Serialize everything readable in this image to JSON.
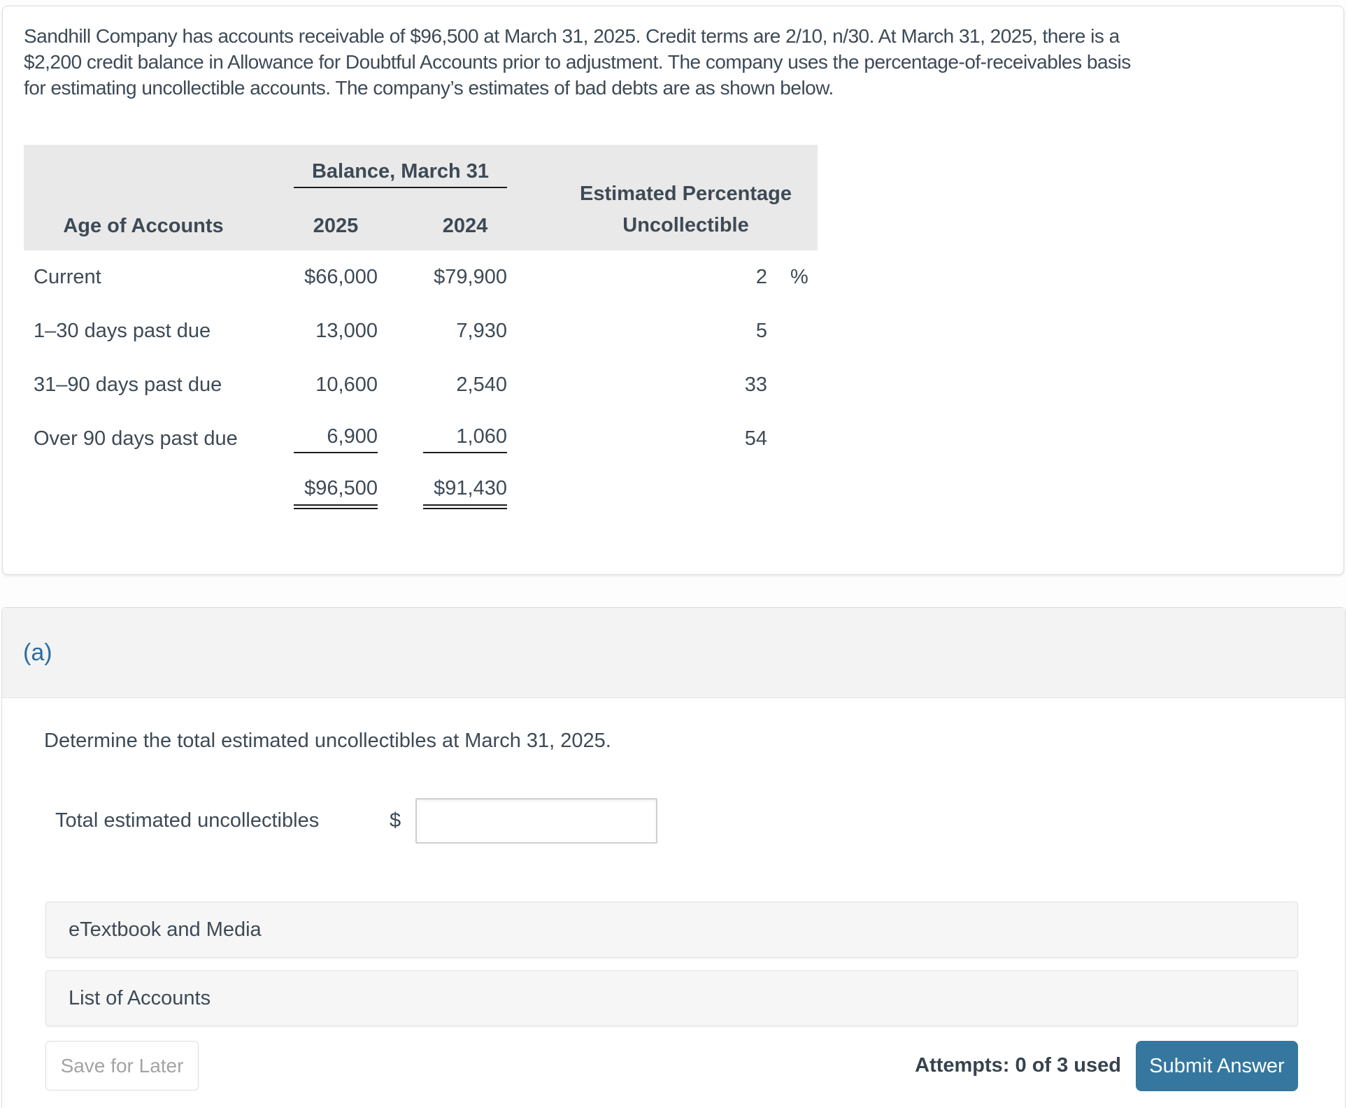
{
  "problem": {
    "intro_lines": [
      "Sandhill Company has accounts receivable of $96,500 at March 31, 2025. Credit terms are 2/10, n/30. At March 31, 2025, there is a",
      "$2,200 credit balance in Allowance for Doubtful Accounts prior to adjustment. The company uses the percentage-of-receivables basis",
      "for estimating uncollectible accounts. The company’s estimates of bad debts are as shown below."
    ],
    "table": {
      "header": {
        "balance_group": "Balance, March 31",
        "age_label": "Age of Accounts",
        "col_2025": "2025",
        "col_2024": "2024",
        "pct_line1": "Estimated Percentage",
        "pct_line2": "Uncollectible"
      },
      "rows": [
        {
          "age": "Current",
          "y2025": "$66,000",
          "y2024": "$79,900",
          "pct": "2",
          "pct_symbol": "%"
        },
        {
          "age": "1–30 days past due",
          "y2025": "13,000",
          "y2024": "7,930",
          "pct": "5"
        },
        {
          "age": "31–90 days past due",
          "y2025": "10,600",
          "y2024": "2,540",
          "pct": "33"
        },
        {
          "age": "Over 90 days past due",
          "y2025": "6,900",
          "y2024": "1,060",
          "pct": "54"
        }
      ],
      "totals": {
        "y2025": "$96,500",
        "y2024": "$91,430"
      }
    }
  },
  "part_a": {
    "label": "(a)",
    "question": "Determine the total estimated uncollectibles at March 31, 2025.",
    "answer_label": "Total estimated uncollectibles",
    "currency_symbol": "$",
    "answer_value": ""
  },
  "actions": {
    "etextbook": "eTextbook and Media",
    "list_of_accounts": "List of Accounts",
    "save_for_later": "Save for Later",
    "attempts": "Attempts: 0 of 3 used",
    "submit": "Submit Answer"
  },
  "colors": {
    "part_label_blue": "#2e6da0",
    "submit_blue": "#35779e",
    "table_header_gray": "#e9e9e9",
    "section_header_gray": "#f3f3f3",
    "text_dark": "#3d4a56"
  }
}
